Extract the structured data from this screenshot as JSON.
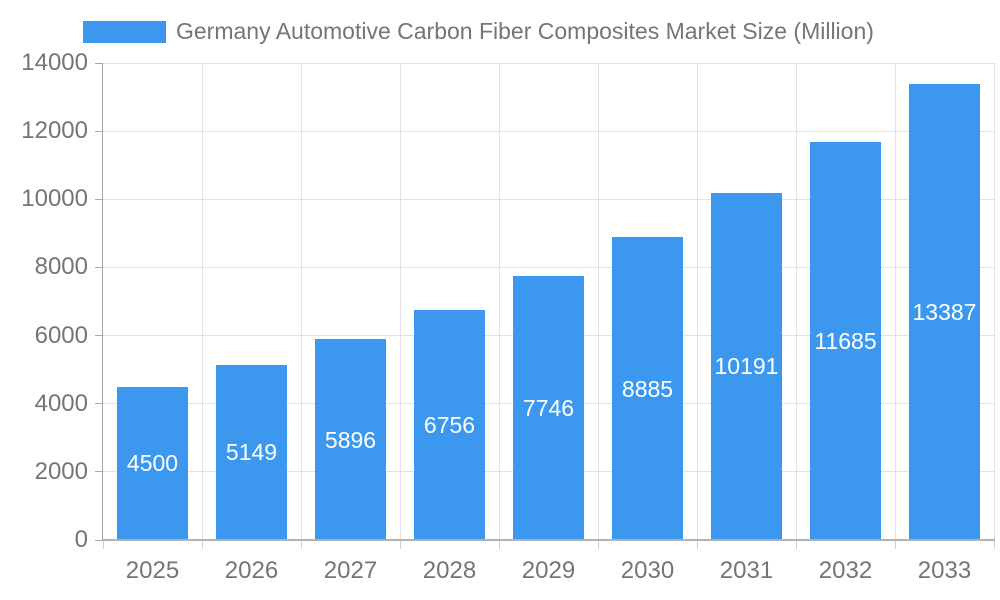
{
  "legend": {
    "label": "Germany Automotive Carbon Fiber Composites Market Size (Million)"
  },
  "chart_data": {
    "type": "bar",
    "title": "Germany Automotive Carbon Fiber Composites Market Size (Million)",
    "categories": [
      "2025",
      "2026",
      "2027",
      "2028",
      "2029",
      "2030",
      "2031",
      "2032",
      "2033"
    ],
    "values": [
      4500,
      5149,
      5896,
      6756,
      7746,
      8885,
      10191,
      11685,
      13387
    ],
    "xlabel": "",
    "ylabel": "",
    "ylim": [
      0,
      14000
    ],
    "yticks": [
      0,
      2000,
      4000,
      6000,
      8000,
      10000,
      12000,
      14000
    ],
    "grid": true,
    "legend_position": "top-left",
    "bar_color": "#3B98EE",
    "value_label_color": "#ffffff",
    "text_color": "#757575",
    "grid_color": "#e2e2e2",
    "axis_color": "#b0b0b0",
    "background_color": "#ffffff"
  }
}
